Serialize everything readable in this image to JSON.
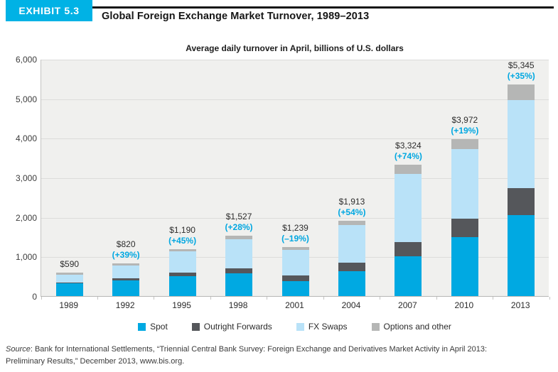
{
  "exhibit": {
    "tag_label": "EXHIBIT 5.3",
    "title": "Global Foreign Exchange Market Turnover, 1989–2013"
  },
  "chart_data": {
    "type": "bar",
    "stacked": true,
    "title": "Average daily turnover in April, billions of U.S. dollars",
    "categories": [
      "1989",
      "1992",
      "1995",
      "1998",
      "2001",
      "2004",
      "2007",
      "2010",
      "2013"
    ],
    "series": [
      {
        "name": "Spot",
        "color": "#00a9e2",
        "values": [
          317,
          394,
          494,
          568,
          386,
          631,
          1005,
          1488,
          2046
        ]
      },
      {
        "name": "Outright Forwards",
        "color": "#55575b",
        "values": [
          27,
          58,
          97,
          128,
          130,
          209,
          362,
          475,
          680
        ]
      },
      {
        "name": "FX Swaps",
        "color": "#b9e2f8",
        "values": [
          190,
          324,
          546,
          734,
          656,
          954,
          1714,
          1759,
          2228
        ]
      },
      {
        "name": "Options and other",
        "color": "#b5b6b5",
        "values": [
          56,
          44,
          53,
          97,
          67,
          119,
          243,
          250,
          391
        ]
      }
    ],
    "totals": [
      590,
      820,
      1190,
      1527,
      1239,
      1913,
      3324,
      3972,
      5345
    ],
    "total_labels": [
      "$590",
      "$820",
      "$1,190",
      "$1,527",
      "$1,239",
      "$1,913",
      "$3,324",
      "$3,972",
      "$5,345"
    ],
    "pct_change_labels": [
      "",
      "(+39%)",
      "(+45%)",
      "(+28%)",
      "(–19%)",
      "(+54%)",
      "(+74%)",
      "(+19%)",
      "(+35%)"
    ],
    "xlabel": "",
    "ylabel": "",
    "ylim": [
      0,
      6000
    ],
    "ytick_interval": 1000,
    "yticks": [
      "6,000",
      "5,000",
      "4,000",
      "3,000",
      "2,000",
      "1,000",
      "0"
    ],
    "grid": true,
    "legend_position": "bottom",
    "colors": {
      "plot_bg": "#f0f0ee",
      "gridline": "#dcdcda",
      "axis": "#c4c4c2",
      "value_label": "#2d2d2d",
      "pct_label": "#00a7e1"
    }
  },
  "source": {
    "prefix_italic": "Source",
    "line1_rest": ": Bank for International Settlements, “Triennial Central Bank Survey: Foreign Exchange and Derivatives Market Activity in April 2013:",
    "line2": "Preliminary Results,” December 2013, www.bis.org."
  },
  "theme": {
    "brand_cyan": "#00b2e5",
    "header_rule_color": "#141414"
  }
}
